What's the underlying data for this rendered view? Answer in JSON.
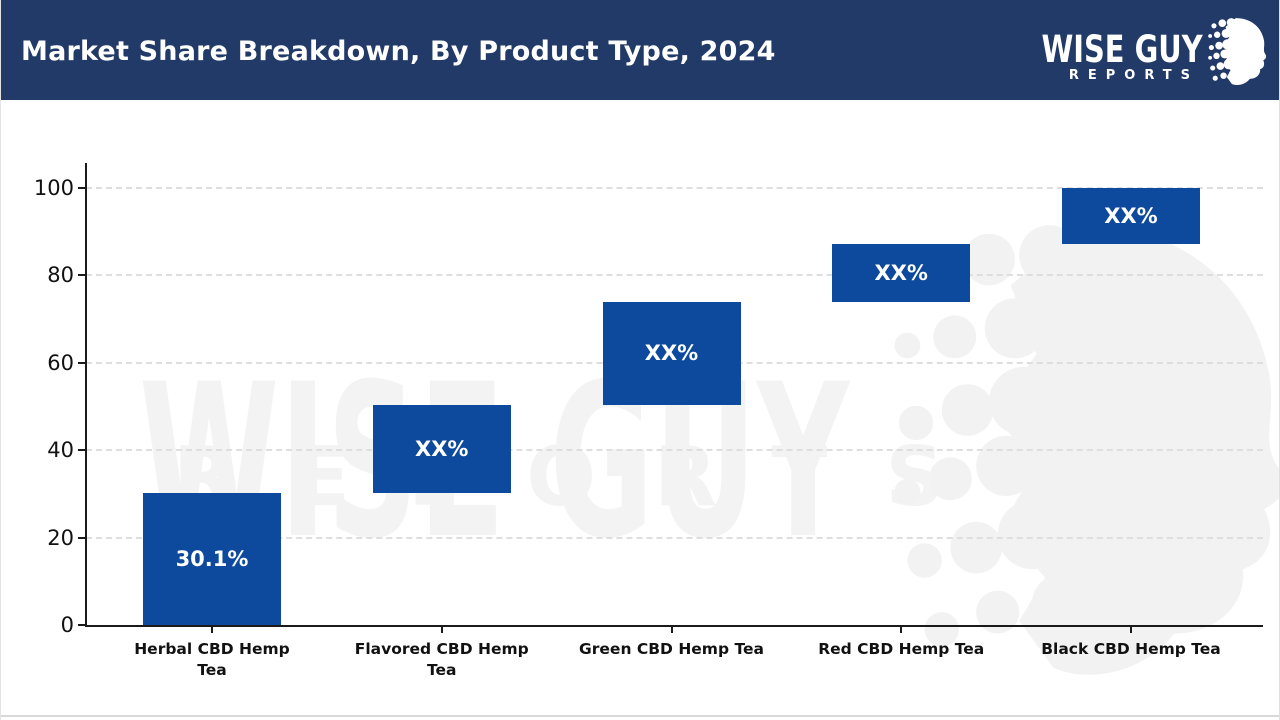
{
  "header": {
    "title": "Market Share Breakdown, By Product Type, 2024",
    "bg_color": "#223a68",
    "logo": {
      "wordmark": "WISE GUY",
      "subtext": "REPORTS"
    }
  },
  "watermark": {
    "wordmark": "WISE GUY",
    "subtext": "REPORTS"
  },
  "chart_data": {
    "type": "bar",
    "variant": "floating-segment-waterfall",
    "title": "Market Share Breakdown, By Product Type, 2024",
    "categories": [
      "Herbal CBD Hemp Tea",
      "Flavored CBD Hemp Tea",
      "Green CBD Hemp Tea",
      "Red CBD Hemp Tea",
      "Black CBD Hemp Tea"
    ],
    "category_label_lines": [
      [
        "Herbal CBD Hemp",
        "Tea"
      ],
      [
        "Flavored CBD Hemp",
        "Tea"
      ],
      [
        "Green CBD Hemp Tea"
      ],
      [
        "Red CBD Hemp Tea"
      ],
      [
        "Black CBD Hemp Tea"
      ]
    ],
    "segments": [
      {
        "category": "Herbal CBD Hemp Tea",
        "start": 0,
        "end": 30.1,
        "label": "30.1%"
      },
      {
        "category": "Flavored CBD Hemp Tea",
        "start": 30.1,
        "end": 50.3,
        "label": "XX%"
      },
      {
        "category": "Green CBD Hemp Tea",
        "start": 50.3,
        "end": 73.9,
        "label": "XX%"
      },
      {
        "category": "Red CBD Hemp Tea",
        "start": 73.9,
        "end": 87.1,
        "label": "XX%"
      },
      {
        "category": "Black CBD Hemp Tea",
        "start": 87.1,
        "end": 100,
        "label": "XX%"
      }
    ],
    "yticks": [
      0,
      20,
      40,
      60,
      80,
      100
    ],
    "ylim": [
      0,
      106
    ],
    "xlabel": "",
    "ylabel": "",
    "grid": "horizontal-dashed",
    "legend": "none",
    "bar_color": "#0d4a9e",
    "bar_label_color": "#ffffff"
  }
}
